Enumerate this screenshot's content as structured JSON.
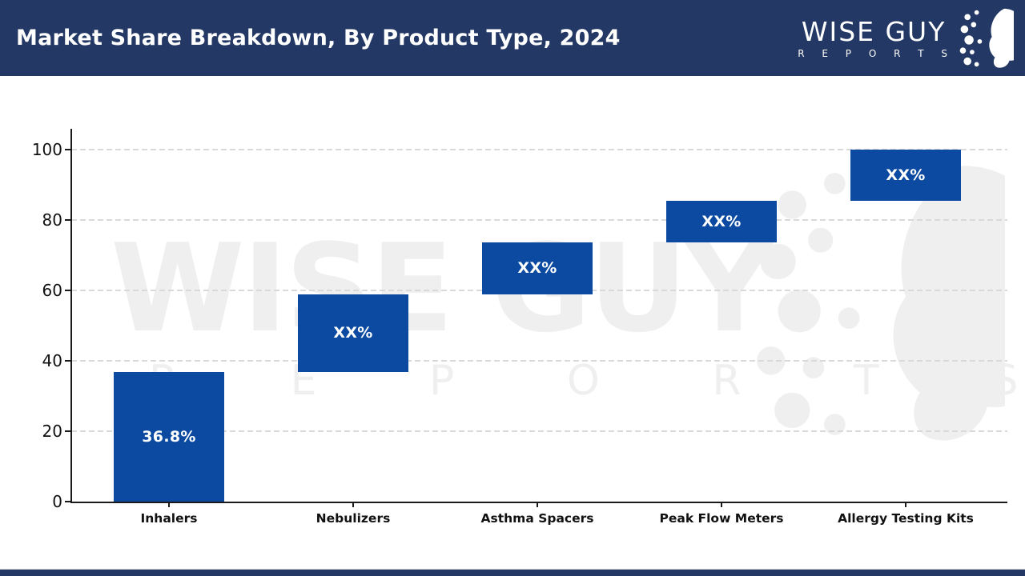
{
  "header": {
    "title": "Market Share Breakdown, By Product Type, 2024",
    "bg_color": "#233864",
    "brand": {
      "line1": "WISE GUY",
      "line2": "R E P O R T S",
      "head_icon": "dotted-face-profile-icon"
    }
  },
  "watermark": {
    "line1": "WISE GUY",
    "line2": "R E P O R T S",
    "color": "#efefef"
  },
  "footer": {
    "bg_color": "#233864"
  },
  "chart_data": {
    "type": "bar",
    "variant": "waterfall",
    "title": "Market Share Breakdown, By Product Type, 2024",
    "categories": [
      "Inhalers",
      "Nebulizers",
      "Asthma Spacers",
      "Peak Flow Meters",
      "Allergy Testing Kits"
    ],
    "segments": [
      {
        "category": "Inhalers",
        "start": 0,
        "end": 36.8,
        "label": "36.8%"
      },
      {
        "category": "Nebulizers",
        "start": 36.8,
        "end": 58.9,
        "label": "XX%"
      },
      {
        "category": "Asthma Spacers",
        "start": 58.9,
        "end": 73.6,
        "label": "XX%"
      },
      {
        "category": "Peak Flow Meters",
        "start": 73.6,
        "end": 85.5,
        "label": "XX%"
      },
      {
        "category": "Allergy Testing Kits",
        "start": 85.5,
        "end": 100,
        "label": "XX%"
      }
    ],
    "yticks": [
      0,
      20,
      40,
      60,
      80,
      100
    ],
    "ylim": [
      0,
      106
    ],
    "xlabel": "",
    "ylabel": "",
    "grid": "horizontal-dashed",
    "legend": "none",
    "bar_color": "#0b4aa0",
    "grid_color": "#d9d9d9",
    "axis_color": "#1a1a1a"
  }
}
